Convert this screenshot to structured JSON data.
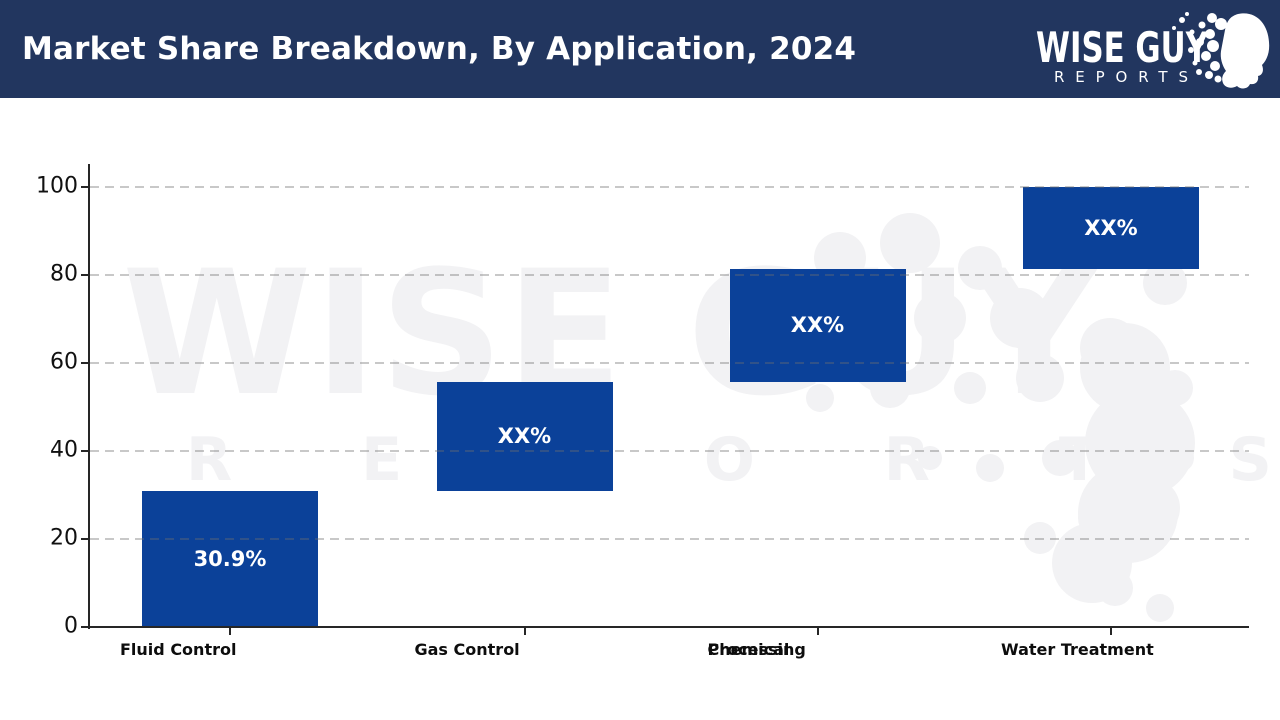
{
  "header": {
    "title": "Market Share Breakdown, By Application, 2024",
    "logo": {
      "line1": "WISE GUY",
      "line2": "REPORTS"
    }
  },
  "watermark": {
    "line1": "WISE GUY",
    "line2": "R E P O R T S"
  },
  "chart_data": {
    "type": "bar",
    "subtype": "floating-segment-waterfall",
    "title": "Market Share Breakdown, By Application, 2024",
    "categories": [
      "Fluid Control",
      "Gas Control",
      "Chemical Processing",
      "Water Treatment"
    ],
    "x_tick_label_lines": [
      [
        "Fluid Control"
      ],
      [
        "Gas Control"
      ],
      [
        "Chemical",
        "Processing"
      ],
      [
        "Water Treatment"
      ]
    ],
    "segments": [
      {
        "category": "Fluid Control",
        "start": 0,
        "end": 30.9,
        "label": "30.9%"
      },
      {
        "category": "Gas Control",
        "start": 30.9,
        "end": 55.7,
        "label": "XX%"
      },
      {
        "category": "Chemical Processing",
        "start": 55.7,
        "end": 81.4,
        "label": "XX%"
      },
      {
        "category": "Water Treatment",
        "start": 81.4,
        "end": 100,
        "label": "XX%"
      }
    ],
    "value_unit": "%",
    "xlabel": "",
    "ylabel": "",
    "ylim": [
      0,
      105
    ],
    "yticks": [
      0,
      20,
      40,
      60,
      80,
      100
    ],
    "grid": {
      "horizontal": true,
      "style": "dashed",
      "drawn_above_bars": true
    },
    "legend": "none",
    "colors": {
      "bar": "#0b4199",
      "bar_label": "#ffffff",
      "axis": "#262626",
      "tick_label": "#111111",
      "gridline": "#c9c9c9",
      "header_bg": "#22365f",
      "watermark": "#f2f2f4",
      "background": "#ffffff"
    }
  }
}
